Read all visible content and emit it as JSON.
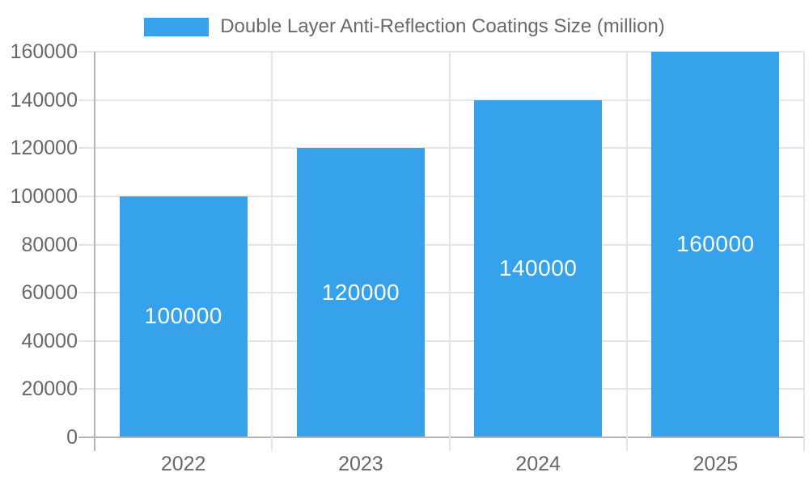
{
  "legend": {
    "label": "Double Layer Anti-Reflection Coatings Size (million)"
  },
  "chart_data": {
    "type": "bar",
    "title": "",
    "categories": [
      "2022",
      "2023",
      "2024",
      "2025"
    ],
    "series": [
      {
        "name": "Double Layer Anti-Reflection Coatings Size (million)",
        "values": [
          100000,
          120000,
          140000,
          160000
        ],
        "color": "#36A2EB"
      }
    ],
    "value_labels": [
      "100000",
      "120000",
      "140000",
      "160000"
    ],
    "xlabel": "",
    "ylabel": "",
    "ylim": [
      0,
      160000
    ],
    "y_ticks": [
      0,
      20000,
      40000,
      60000,
      80000,
      100000,
      120000,
      140000,
      160000
    ],
    "grid": true,
    "legend_position": "top-center",
    "colors": {
      "bar": "#36A2EB",
      "value_label_text": "#FFFFFF",
      "gridline": "#E5E5E5",
      "axis_line": "#B5B5B5",
      "tick_label_text": "#686868",
      "legend_text": "#696969",
      "background": "#FFFFFF"
    }
  }
}
